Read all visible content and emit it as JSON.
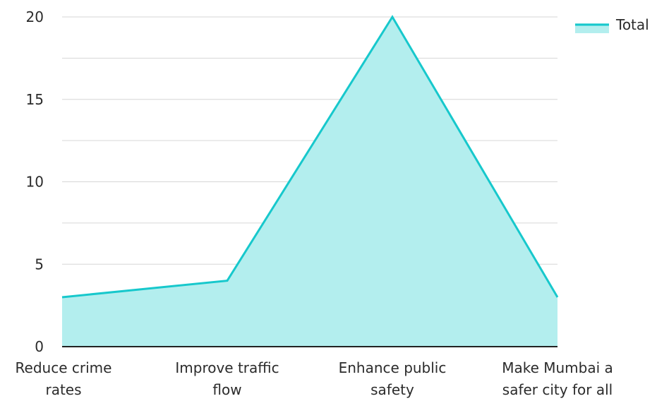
{
  "chart_data": {
    "type": "area",
    "categories": [
      [
        "Reduce crime",
        "rates"
      ],
      [
        "Improve traffic",
        "flow"
      ],
      [
        "Enhance public",
        "safety"
      ],
      [
        "Make Mumbai a",
        "safer city for all"
      ]
    ],
    "series": [
      {
        "name": "Total",
        "values": [
          3,
          4,
          20,
          3
        ]
      }
    ],
    "ylim": [
      0,
      20
    ],
    "yticks": [
      0,
      5,
      10,
      15,
      20
    ],
    "grid": true,
    "legend_position": "top-right",
    "colors": {
      "line": "#17C8CC",
      "fill": "#B3EEEE",
      "grid": "#D6D6D6",
      "axis": "#222222"
    }
  }
}
